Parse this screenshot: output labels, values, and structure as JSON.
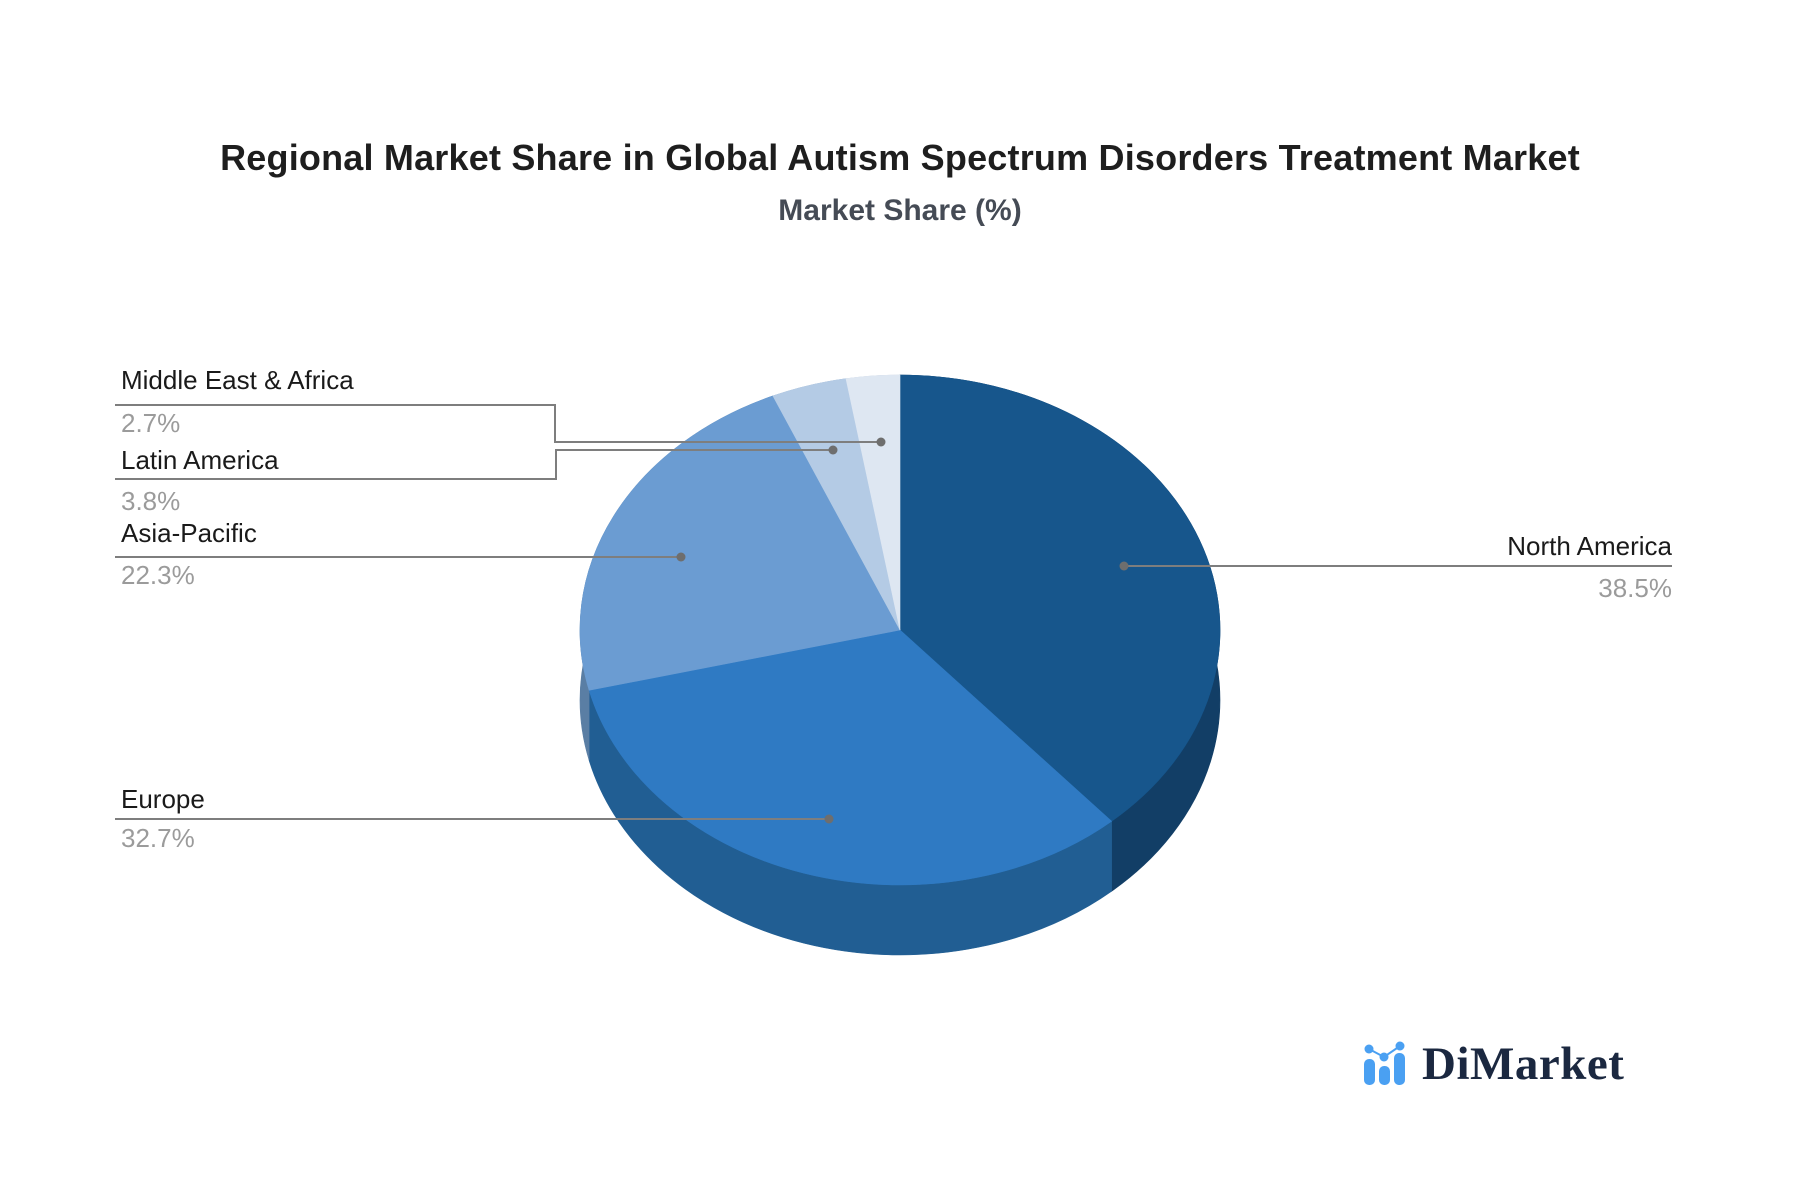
{
  "header": {
    "title": "Regional Market Share in Global Autism Spectrum Disorders Treatment Market",
    "subtitle": "Market Share (%)"
  },
  "brand": {
    "name": "DiMarket"
  },
  "chart_data": {
    "type": "pie",
    "style": "3d",
    "title": "Regional Market Share in Global Autism Spectrum Disorders Treatment Market",
    "subtitle": "Market Share (%)",
    "unit": "%",
    "start_angle_deg": 0,
    "direction": "clockwise",
    "legend_position": "callout-labels",
    "label_color": "#1A1A1A",
    "value_color": "#9B9B9B",
    "callout_line_color": "#7E7E7E",
    "series": [
      {
        "name": "North America",
        "value": 38.5,
        "pct_label": "38.5%",
        "color_top": "#17568C",
        "color_side": "#123E66"
      },
      {
        "name": "Europe",
        "value": 32.7,
        "pct_label": "32.7%",
        "color_top": "#2F7AC3",
        "color_side": "#215E93"
      },
      {
        "name": "Asia-Pacific",
        "value": 22.3,
        "pct_label": "22.3%",
        "color_top": "#6B9CD2",
        "color_side": "#5A7EA4"
      },
      {
        "name": "Latin America",
        "value": 3.8,
        "pct_label": "3.8%",
        "color_top": "#B4CBE5",
        "color_side": "#93A8C4"
      },
      {
        "name": "Middle East & Africa",
        "value": 2.7,
        "pct_label": "2.7%",
        "color_top": "#DEE7F2",
        "color_side": "#B8C2D4"
      }
    ]
  }
}
